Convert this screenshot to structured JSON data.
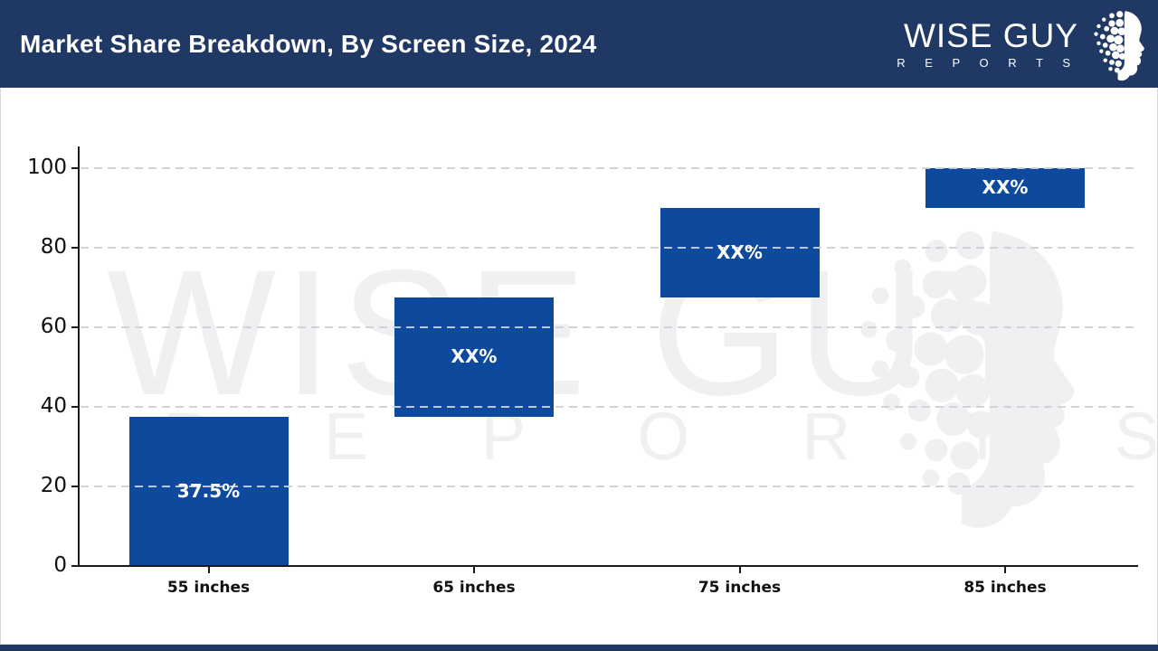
{
  "header": {
    "title": "Market Share Breakdown, By Screen Size, 2024",
    "bg_color": "#1f3864",
    "logo": {
      "line1": "WISE GUY",
      "line2": "R E P O R T S"
    }
  },
  "watermark": {
    "line1": "WISE GUY",
    "line2": "R E P O R T S"
  },
  "footer": {
    "bg_color": "#1f3864"
  },
  "chart_data": {
    "type": "bar",
    "subtype": "waterfall",
    "title": "Market Share Breakdown, By Screen Size, 2024",
    "categories": [
      "55 inches",
      "65 inches",
      "75 inches",
      "85 inches"
    ],
    "segments": [
      {
        "category": "55 inches",
        "start": 0,
        "end": 37.5,
        "label": "37.5%"
      },
      {
        "category": "65 inches",
        "start": 37.5,
        "end": 67.5,
        "label": "XX%"
      },
      {
        "category": "75 inches",
        "start": 67.5,
        "end": 90,
        "label": "XX%"
      },
      {
        "category": "85 inches",
        "start": 90,
        "end": 100,
        "label": "XX%"
      }
    ],
    "yticks": [
      0,
      20,
      40,
      60,
      80,
      100
    ],
    "ylim": [
      0,
      105
    ],
    "xlabel": "",
    "ylabel": "",
    "grid": "horizontal-dashed",
    "legend": "none",
    "bar_color": "#0d4a9e",
    "bar_label_color": "#ffffff",
    "gridline_color": "#d9d9d9",
    "axis_color": "#1a1a1a"
  }
}
